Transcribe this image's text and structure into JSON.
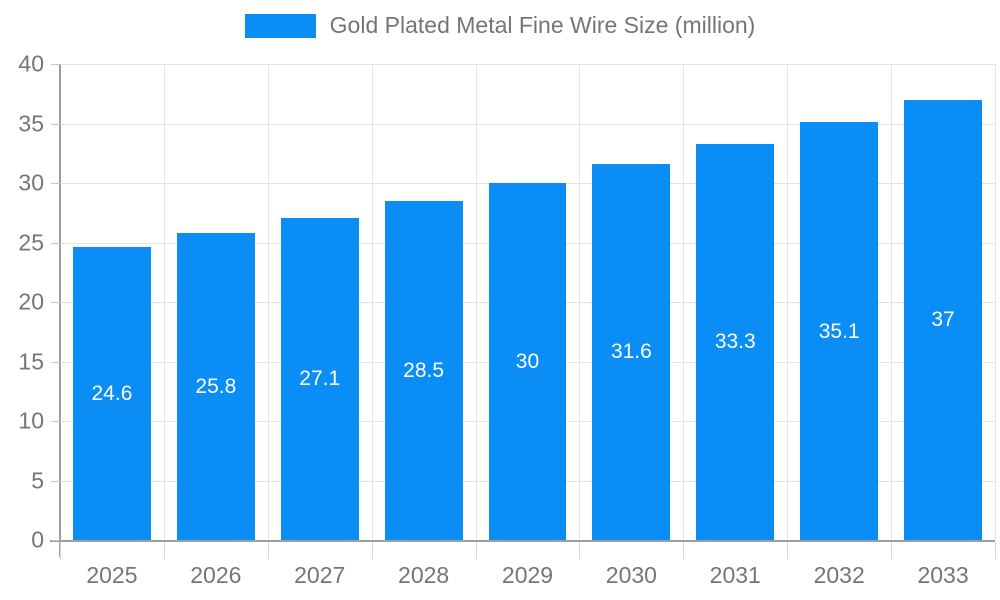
{
  "legend": {
    "label": "Gold Plated Metal Fine Wire Size (million)"
  },
  "colors": {
    "bar": "#0a8df5",
    "bar_label": "#ffffff",
    "axis": "#9e9e9e",
    "grid": "#e3e3e3",
    "text": "#757575",
    "background": "#ffffff"
  },
  "chart_data": {
    "type": "bar",
    "title": "Gold Plated Metal Fine Wire Size (million)",
    "categories": [
      "2025",
      "2026",
      "2027",
      "2028",
      "2029",
      "2030",
      "2031",
      "2032",
      "2033"
    ],
    "values": [
      24.6,
      25.8,
      27.1,
      28.5,
      30,
      31.6,
      33.3,
      35.1,
      37
    ],
    "value_labels": [
      "24.6",
      "25.8",
      "27.1",
      "28.5",
      "30",
      "31.6",
      "33.3",
      "35.1",
      "37"
    ],
    "y_ticks": [
      0,
      5,
      10,
      15,
      20,
      25,
      30,
      35,
      40
    ],
    "ylim": [
      0,
      40
    ],
    "xlabel": "",
    "ylabel": "",
    "grid": true,
    "legend_position": "top",
    "data_labels": "inside-center"
  }
}
